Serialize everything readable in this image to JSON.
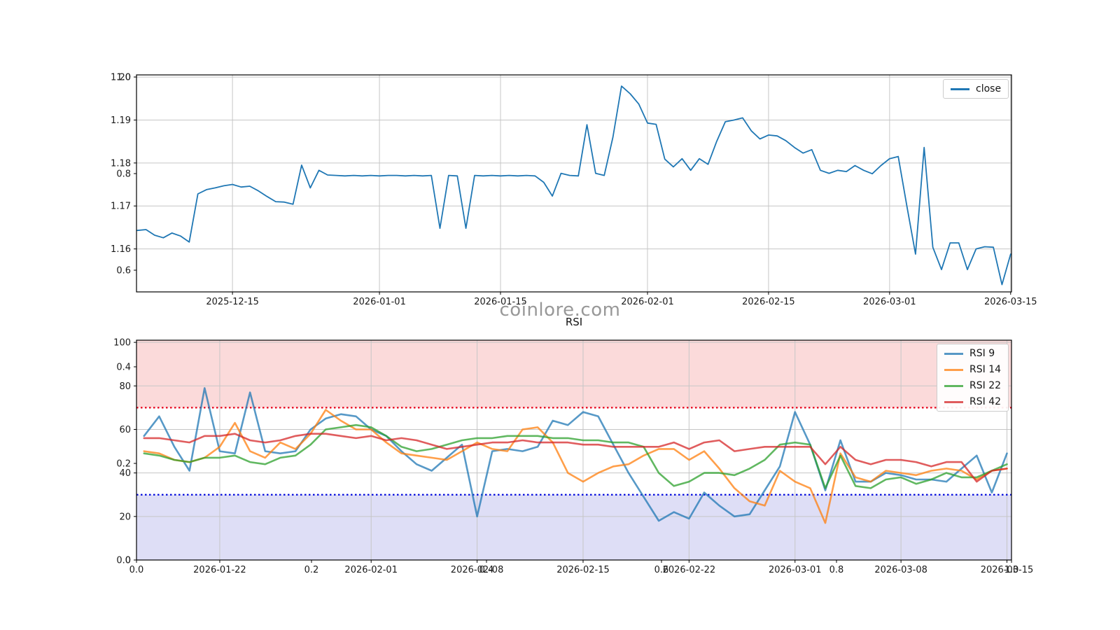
{
  "watermark": {
    "text": "coinlore.com",
    "color": "#989898"
  },
  "colors": {
    "close": "#1f77b4",
    "rsi9": "#1f77b4",
    "rsi14": "#ff7f0e",
    "rsi22": "#2ca02c",
    "rsi42": "#d62728",
    "grid": "#c6c6c6",
    "spine": "#000000",
    "tick_text": "#1a1a1a",
    "overbought_band": "#fbdada",
    "oversold_band": "#dedef6",
    "overbought_line": "#e60018",
    "oversold_line": "#0008dd"
  },
  "overlay_axis": {
    "x_labels": [
      "0.0",
      "0.2",
      "0.4",
      "0.6",
      "0.8",
      "1.0"
    ],
    "y_labels": [
      "0.0",
      "0.2",
      "0.4",
      "0.6",
      "0.8",
      "1.0"
    ]
  },
  "chart_data": [
    {
      "id": "price",
      "type": "line",
      "title": "",
      "start_date": "2025-12-04",
      "legend_entries": [
        {
          "label": "close",
          "color": "#1f77b4",
          "opacity": 1
        }
      ],
      "x_ticks": [
        {
          "label": "2025-12-15",
          "i": 11
        },
        {
          "label": "2026-01-01",
          "i": 28
        },
        {
          "label": "2026-01-15",
          "i": 42
        },
        {
          "label": "2026-02-01",
          "i": 59
        },
        {
          "label": "2026-02-15",
          "i": 73
        },
        {
          "label": "2026-03-01",
          "i": 87
        },
        {
          "label": "2026-03-15",
          "i": 101
        }
      ],
      "y_ticks": [
        {
          "label": "1.16",
          "v": 1.16
        },
        {
          "label": "1.17",
          "v": 1.17
        },
        {
          "label": "1.18",
          "v": 1.18
        },
        {
          "label": "1.19",
          "v": 1.19
        },
        {
          "label": "1.20",
          "v": 1.2
        }
      ],
      "xlim": [
        -0.1,
        101.1
      ],
      "ylim": [
        1.15,
        1.2005
      ],
      "grid": true,
      "bands": [],
      "ref_lines": [],
      "series": [
        {
          "name": "close",
          "color": "#1f77b4",
          "width": 1.8,
          "opacity": 1,
          "values": [
            1.1643,
            1.1645,
            1.1632,
            1.1626,
            1.1637,
            1.163,
            1.1616,
            1.1728,
            1.1738,
            1.1742,
            1.1747,
            1.175,
            1.1744,
            1.1746,
            1.1735,
            1.1722,
            1.171,
            1.1709,
            1.1704,
            1.1795,
            1.1742,
            1.1783,
            1.1772,
            1.1771,
            1.177,
            1.1771,
            1.177,
            1.1771,
            1.177,
            1.1771,
            1.1771,
            1.177,
            1.1771,
            1.177,
            1.1771,
            1.1648,
            1.1771,
            1.177,
            1.1648,
            1.1771,
            1.177,
            1.1771,
            1.177,
            1.1771,
            1.177,
            1.1771,
            1.177,
            1.1755,
            1.1723,
            1.1776,
            1.1771,
            1.177,
            1.1889,
            1.1776,
            1.1771,
            1.186,
            1.1979,
            1.1961,
            1.1937,
            1.1893,
            1.189,
            1.1809,
            1.1791,
            1.181,
            1.1783,
            1.181,
            1.1797,
            1.185,
            1.1896,
            1.19,
            1.1905,
            1.1875,
            1.1856,
            1.1865,
            1.1863,
            1.1852,
            1.1836,
            1.1823,
            1.1831,
            1.1783,
            1.1776,
            1.1783,
            1.178,
            1.1794,
            1.1783,
            1.1775,
            1.1794,
            1.181,
            1.1815,
            1.17,
            1.1588,
            1.1836,
            1.1604,
            1.1552,
            1.1614,
            1.1614,
            1.1552,
            1.16,
            1.1605,
            1.1604,
            1.1517,
            1.1588
          ]
        }
      ]
    },
    {
      "id": "rsi",
      "type": "line",
      "title": "RSI",
      "start_date": "2026-01-17",
      "legend_entries": [
        {
          "label": "RSI 9",
          "color": "#1f77b4",
          "opacity": 0.75
        },
        {
          "label": "RSI 14",
          "color": "#ff7f0e",
          "opacity": 0.75
        },
        {
          "label": "RSI 22",
          "color": "#2ca02c",
          "opacity": 0.75
        },
        {
          "label": "RSI 42",
          "color": "#d62728",
          "opacity": 0.75
        }
      ],
      "x_ticks": [
        {
          "label": "2026-01-22",
          "i": 5
        },
        {
          "label": "2026-02-01",
          "i": 15
        },
        {
          "label": "2026-02-08",
          "i": 22
        },
        {
          "label": "2026-02-15",
          "i": 29
        },
        {
          "label": "2026-02-22",
          "i": 36
        },
        {
          "label": "2026-03-01",
          "i": 43
        },
        {
          "label": "2026-03-08",
          "i": 50
        },
        {
          "label": "2026-03-15",
          "i": 57
        }
      ],
      "y_ticks": [
        {
          "label": "0",
          "v": 0
        },
        {
          "label": "20",
          "v": 20
        },
        {
          "label": "40",
          "v": 40
        },
        {
          "label": "60",
          "v": 60
        },
        {
          "label": "80",
          "v": 80
        },
        {
          "label": "100",
          "v": 100
        }
      ],
      "xlim": [
        -0.5,
        57.3
      ],
      "ylim": [
        0,
        101
      ],
      "grid": true,
      "bands": [
        {
          "name": "overbought-band",
          "y1": 70,
          "y2": 101,
          "color": "#fbdada"
        },
        {
          "name": "oversold-band",
          "y1": 0,
          "y2": 30,
          "color": "#dedef6"
        }
      ],
      "ref_lines": [
        {
          "name": "overbought-line",
          "y": 70,
          "color": "#e60018"
        },
        {
          "name": "oversold-line",
          "y": 30,
          "color": "#0008dd"
        }
      ],
      "series": [
        {
          "name": "RSI 9",
          "color": "#1f77b4",
          "width": 2.6,
          "opacity": 0.75,
          "values": [
            57,
            66,
            52,
            41,
            79,
            50,
            49,
            77,
            50,
            49,
            50,
            60,
            65,
            67,
            66,
            60,
            57,
            50,
            44,
            41,
            47,
            53,
            20,
            50,
            51,
            50,
            52,
            64,
            62,
            68,
            66,
            53,
            40,
            29,
            18,
            22,
            19,
            31,
            25,
            20,
            21,
            32,
            43,
            68,
            53,
            32,
            55,
            36,
            36,
            40,
            39,
            37,
            37,
            36,
            42,
            48,
            31,
            49
          ]
        },
        {
          "name": "RSI 14",
          "color": "#ff7f0e",
          "width": 2.6,
          "opacity": 0.75,
          "values": [
            50,
            49,
            46,
            45,
            47,
            52,
            63,
            50,
            47,
            54,
            51,
            58,
            69,
            64,
            60,
            60,
            54,
            49,
            48,
            47,
            46,
            50,
            54,
            51,
            50,
            60,
            61,
            54,
            40,
            36,
            40,
            43,
            44,
            48,
            51,
            51,
            46,
            50,
            42,
            33,
            27,
            25,
            41,
            36,
            33,
            17,
            49,
            38,
            36,
            41,
            40,
            39,
            41,
            42,
            41,
            37,
            41,
            42
          ]
        },
        {
          "name": "RSI 22",
          "color": "#2ca02c",
          "width": 2.6,
          "opacity": 0.75,
          "values": [
            49,
            48,
            46,
            45,
            47,
            47,
            48,
            45,
            44,
            47,
            48,
            53,
            60,
            61,
            62,
            61,
            57,
            52,
            50,
            51,
            53,
            55,
            56,
            56,
            57,
            57,
            57,
            56,
            56,
            55,
            55,
            54,
            54,
            52,
            40,
            34,
            36,
            40,
            40,
            39,
            42,
            46,
            53,
            54,
            53,
            33,
            48,
            34,
            33,
            37,
            38,
            35,
            37,
            40,
            38,
            38,
            41,
            44
          ]
        },
        {
          "name": "RSI 42",
          "color": "#d62728",
          "width": 2.6,
          "opacity": 0.75,
          "values": [
            56,
            56,
            55,
            54,
            57,
            57,
            58,
            55,
            54,
            55,
            57,
            58,
            58,
            57,
            56,
            57,
            55,
            56,
            55,
            53,
            51,
            52,
            53,
            54,
            54,
            55,
            54,
            54,
            54,
            53,
            53,
            52,
            52,
            52,
            52,
            54,
            51,
            54,
            55,
            50,
            51,
            52,
            52,
            52,
            52,
            44,
            52,
            46,
            44,
            46,
            46,
            45,
            43,
            45,
            45,
            36,
            41,
            42
          ]
        }
      ]
    }
  ]
}
